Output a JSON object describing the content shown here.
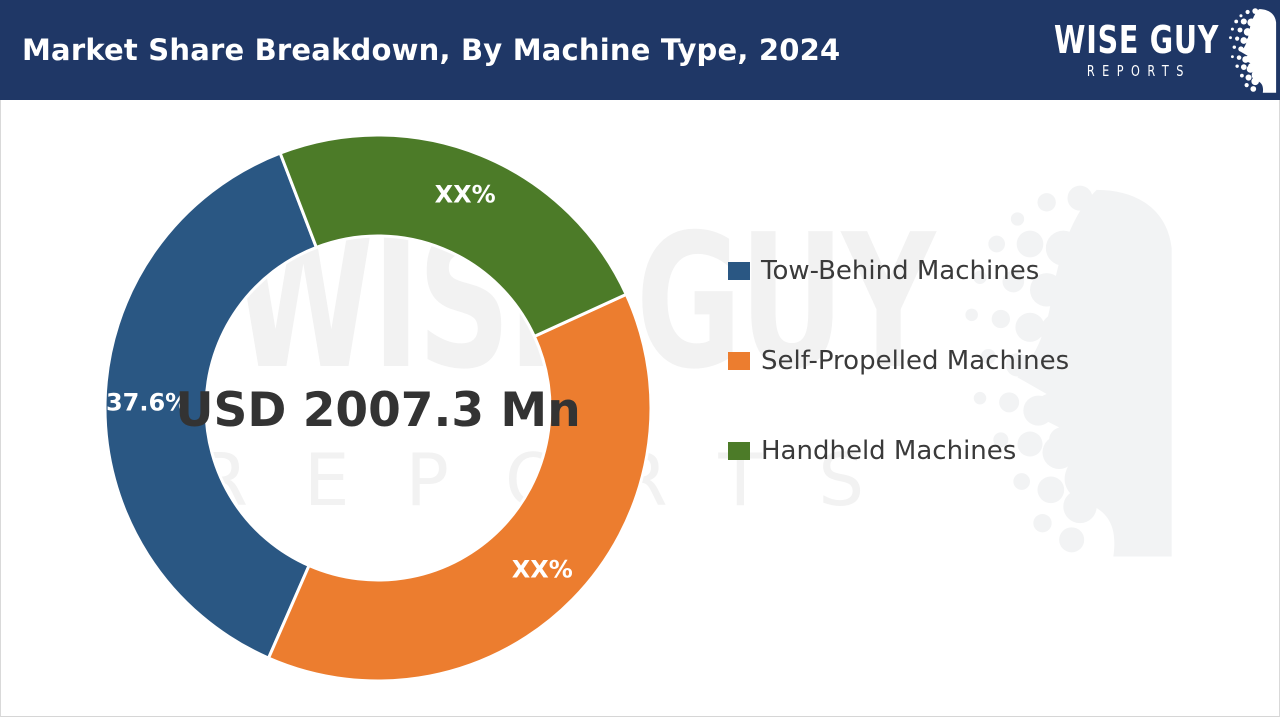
{
  "header": {
    "title": "Market Share Breakdown, By Machine Type, 2024",
    "logo": {
      "line1": "WISE GUY",
      "line2": "REPORTS"
    }
  },
  "watermark": {
    "line1": "WISE GUY",
    "line2": "REPORTS"
  },
  "chart_data": {
    "type": "pie",
    "subtype": "donut",
    "title": "Market Share Breakdown, By Machine Type, 2024",
    "center_label": "USD 2007.3 Mn",
    "start_angle_deg": 111,
    "direction": "counterclockwise",
    "inner_radius_ratio": 0.63,
    "legend_position": "right",
    "segments": [
      {
        "label": "Tow-Behind Machines",
        "value_pct": 37.6,
        "display_label": "37.6%",
        "color": "#2a5783"
      },
      {
        "label": "Self-Propelled Machines",
        "value_pct": 38.4,
        "display_label": "XX%",
        "color": "#ec7d2f"
      },
      {
        "label": "Handheld Machines",
        "value_pct": 24.0,
        "display_label": "XX%",
        "color": "#4c7b28"
      }
    ]
  },
  "colors": {
    "header_bg": "#1f3766",
    "center_text": "#333333",
    "legend_text": "#3a3a3a",
    "watermark": "#f2f2f2"
  }
}
